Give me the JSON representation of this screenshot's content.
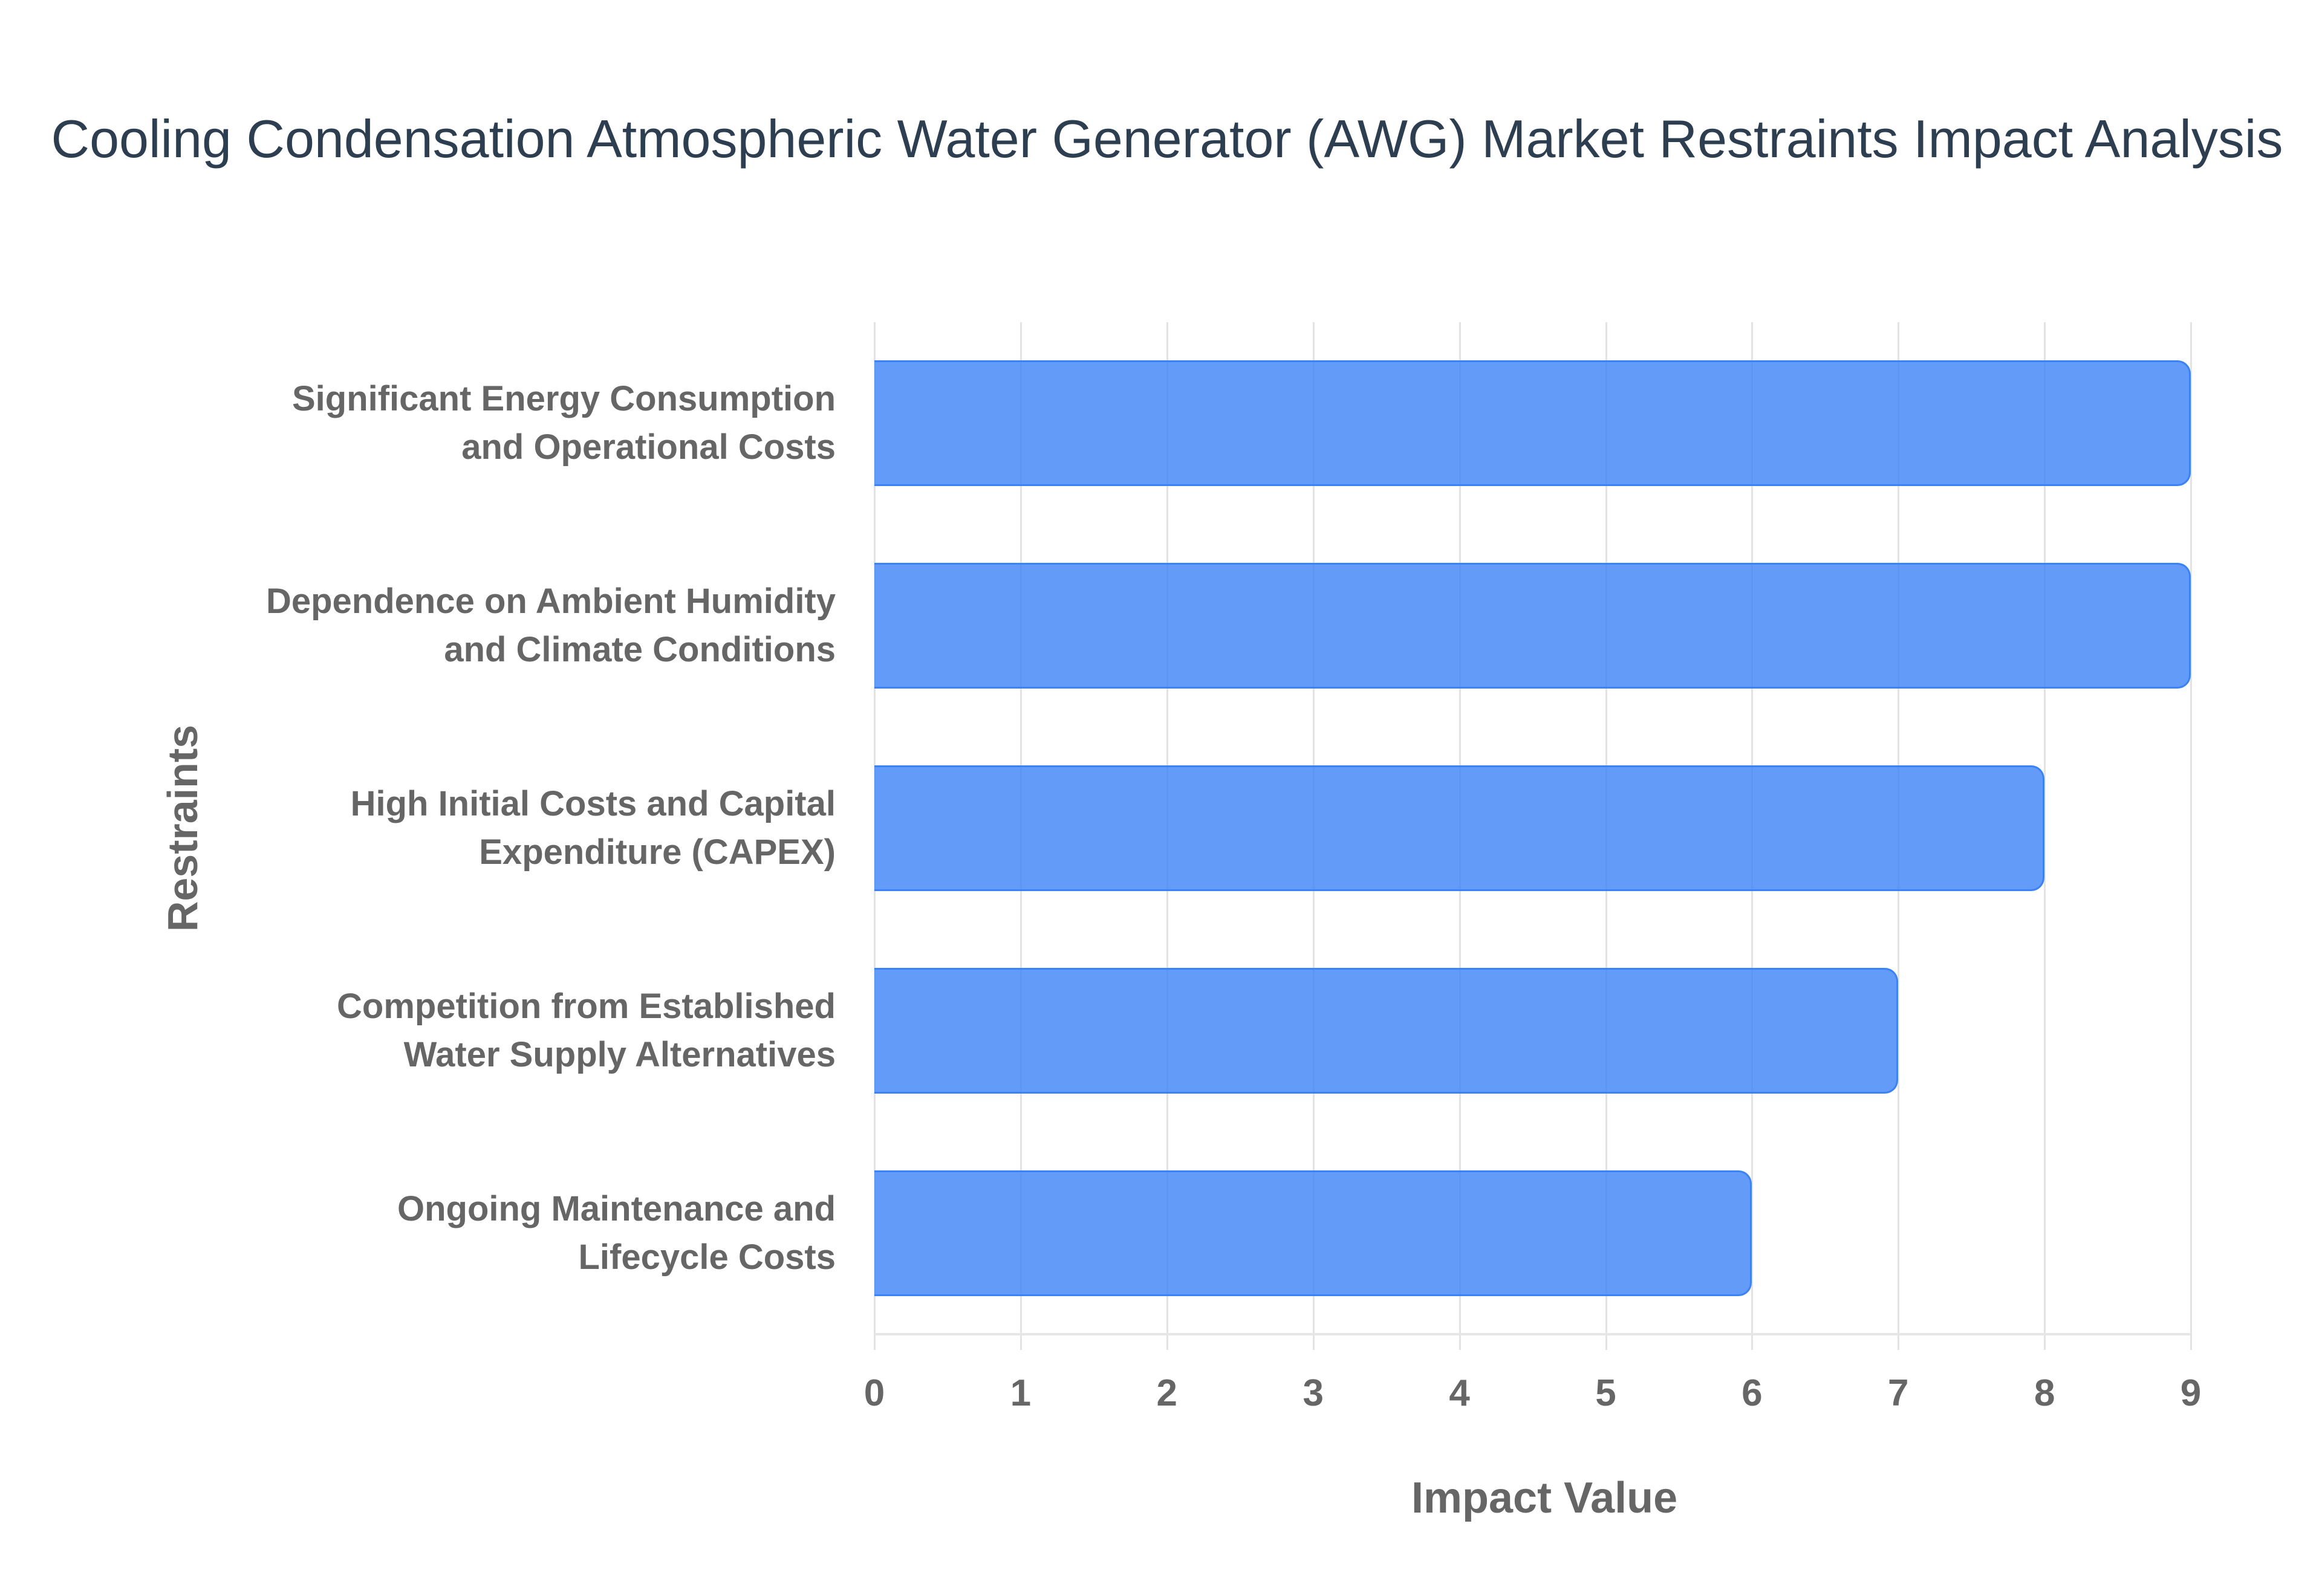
{
  "chart": {
    "title": "Cooling Condensation Atmospheric Water Generator (AWG) Market Restraints Impact Analysis",
    "xlabel": "Impact Value",
    "ylabel": "Restraints",
    "bar_fill": "#6199F4",
    "bar_stroke": "#3b82f6",
    "title_color": "#2c3e50",
    "label_color": "#666666",
    "grid_color": "#e3e3e3",
    "categories": [
      {
        "line1": "Significant Energy Consumption",
        "line2": "and Operational Costs",
        "value": 9
      },
      {
        "line1": "Dependence on Ambient Humidity",
        "line2": "and Climate Conditions",
        "value": 9
      },
      {
        "line1": "High Initial Costs and Capital",
        "line2": "Expenditure (CAPEX)",
        "value": 8
      },
      {
        "line1": "Competition from Established",
        "line2": "Water Supply Alternatives",
        "value": 7
      },
      {
        "line1": "Ongoing Maintenance and",
        "line2": "Lifecycle Costs",
        "value": 6
      }
    ],
    "xticks": [
      "0",
      "1",
      "2",
      "3",
      "4",
      "5",
      "6",
      "7",
      "8",
      "9"
    ]
  },
  "chart_data": {
    "type": "bar",
    "orientation": "horizontal",
    "title": "Cooling Condensation Atmospheric Water Generator (AWG) Market Restraints Impact Analysis",
    "xlabel": "Impact Value",
    "ylabel": "Restraints",
    "categories": [
      "Significant Energy Consumption and Operational Costs",
      "Dependence on Ambient Humidity and Climate Conditions",
      "High Initial Costs and Capital Expenditure (CAPEX)",
      "Competition from Established Water Supply Alternatives",
      "Ongoing Maintenance and Lifecycle Costs"
    ],
    "values": [
      9,
      9,
      8,
      7,
      6
    ],
    "xlim": [
      0,
      9
    ],
    "xticks": [
      0,
      1,
      2,
      3,
      4,
      5,
      6,
      7,
      8,
      9
    ],
    "grid": {
      "vertical": true,
      "horizontal": false
    },
    "legend": null,
    "colors": {
      "bar_fill": "#6199F4",
      "bar_stroke": "#3b82f6"
    }
  }
}
